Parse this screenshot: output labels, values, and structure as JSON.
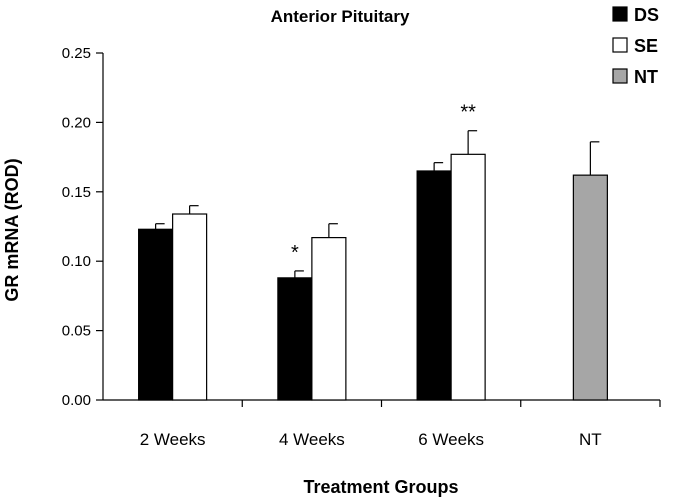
{
  "chart_data": {
    "type": "bar",
    "title": "Anterior Pituitary",
    "xlabel": "Treatment Groups",
    "ylabel": "GR mRNA (ROD)",
    "ylim": [
      0,
      0.25
    ],
    "yticks": [
      "0.00",
      "0.05",
      "0.10",
      "0.15",
      "0.20",
      "0.25"
    ],
    "categories": [
      "2 Weeks",
      "4 Weeks",
      "6 Weeks",
      "NT"
    ],
    "series": [
      {
        "name": "DS",
        "color": "#000000",
        "values": [
          0.123,
          0.088,
          0.165,
          null
        ],
        "errors": [
          0.004,
          0.005,
          0.006,
          null
        ]
      },
      {
        "name": "SE",
        "color": "#ffffff",
        "values": [
          0.134,
          0.117,
          0.177,
          null
        ],
        "errors": [
          0.006,
          0.01,
          0.017,
          null
        ]
      },
      {
        "name": "NT",
        "color": "#a6a6a6",
        "values": [
          null,
          null,
          null,
          0.162
        ],
        "errors": [
          null,
          null,
          null,
          0.024
        ]
      }
    ],
    "annotations": [
      {
        "category": "4 Weeks",
        "series": "DS",
        "text": "*"
      },
      {
        "category": "6 Weeks",
        "series": "SE",
        "text": "**"
      }
    ],
    "legend": "top-right",
    "grid": false
  }
}
